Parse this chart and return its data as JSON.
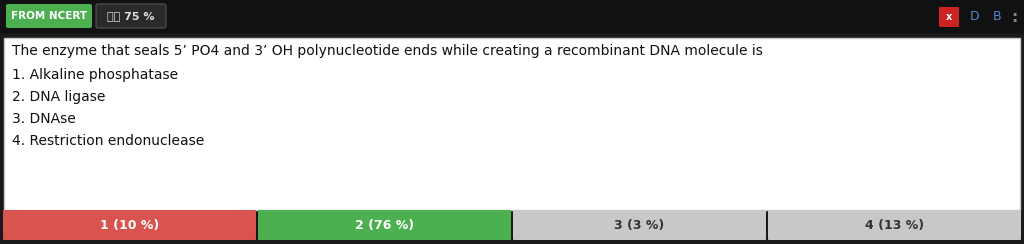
{
  "bg_color": "#1a1a1a",
  "card_bg": "#ffffff",
  "top_bar_bg": "#111111",
  "from_ncert_bg": "#4caf50",
  "from_ncert_text": "FROM NCERT",
  "from_ncert_color": "#ffffff",
  "thumb_text": "👍 75 %",
  "thumb_text_color": "#dddddd",
  "question": "The enzyme that seals 5’ PO4 and 3’ OH polynucleotide ends while creating a recombinant DNA molecule is",
  "options": [
    "1. Alkaline phosphatase",
    "2. DNA ligase",
    "3. DNAse",
    "4. Restriction endonuclease"
  ],
  "answer_bars": [
    {
      "label": "1 (10 %)",
      "color": "#d9534f"
    },
    {
      "label": "2 (76 %)",
      "color": "#4caf50"
    },
    {
      "label": "3 (3 %)",
      "color": "#c8c8c8"
    },
    {
      "label": "4 (13 %)",
      "color": "#c8c8c8"
    }
  ],
  "question_fontsize": 10,
  "option_fontsize": 10,
  "bar_label_fontsize": 9
}
